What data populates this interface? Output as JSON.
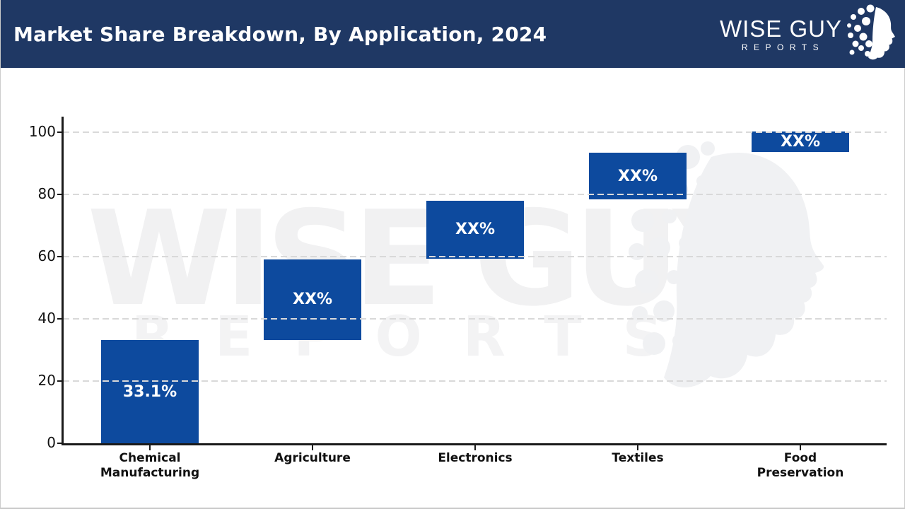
{
  "header": {
    "title": "Market Share Breakdown, By Application, 2024",
    "bg_color": "#1f3864",
    "logo": {
      "line1": "WISE GUY",
      "line2": "REPORTS"
    }
  },
  "watermark": {
    "line1": "WISE GUY",
    "line2": "REPORTS"
  },
  "chart_data": {
    "type": "bar",
    "subtype": "waterfall-segments",
    "title": "Market Share Breakdown, By Application, 2024",
    "xlabel": "",
    "ylabel": "",
    "categories": [
      "Chemical Manufacturing",
      "Agriculture",
      "Electronics",
      "Textiles",
      "Food Preservation"
    ],
    "segments": [
      {
        "category": "Chemical Manufacturing",
        "start": 0,
        "end": 33.1,
        "label": "33.1%"
      },
      {
        "category": "Agriculture",
        "start": 33.2,
        "end": 59.1,
        "label": "XX%"
      },
      {
        "category": "Electronics",
        "start": 59.3,
        "end": 78.0,
        "label": "XX%"
      },
      {
        "category": "Textiles",
        "start": 78.4,
        "end": 93.4,
        "label": "XX%"
      },
      {
        "category": "Food Preservation",
        "start": 93.6,
        "end": 100.2,
        "label": "XX%"
      }
    ],
    "yticks": [
      0,
      20,
      40,
      60,
      80,
      100
    ],
    "ylim": [
      0,
      105
    ],
    "grid": {
      "axis": "y",
      "style": "dashed",
      "color": "#d9d9d9"
    },
    "bar_color": "#0d4a9e",
    "bar_label_color": "#ffffff",
    "legend": null
  }
}
